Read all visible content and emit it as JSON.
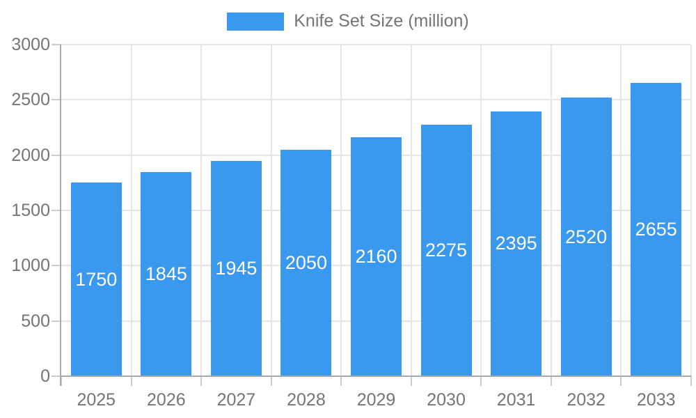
{
  "chart_data": {
    "type": "bar",
    "legend": [
      "Knife Set Size (million)"
    ],
    "categories": [
      "2025",
      "2026",
      "2027",
      "2028",
      "2029",
      "2030",
      "2031",
      "2032",
      "2033"
    ],
    "values": [
      1750,
      1845,
      1945,
      2050,
      2160,
      2275,
      2395,
      2520,
      2655
    ],
    "series": [
      {
        "name": "Knife Set Size (million)",
        "values": [
          1750,
          1845,
          1945,
          2050,
          2160,
          2275,
          2395,
          2520,
          2655
        ]
      }
    ],
    "xlabel": "",
    "ylabel": "",
    "ylim": [
      0,
      3000
    ],
    "yticks": [
      0,
      500,
      1000,
      1500,
      2000,
      2500,
      3000
    ],
    "grid": true,
    "legend_position": "top-center",
    "value_labels_position": "inside-center",
    "colors": {
      "bar": "#3A99EE",
      "value_label": "#FFFFFF",
      "axis_text": "#757575",
      "grid": "#E5E5E5",
      "axis_line": "#A9A9A9",
      "tick": "#CCCCCC",
      "background": "#FFFFFF"
    }
  }
}
